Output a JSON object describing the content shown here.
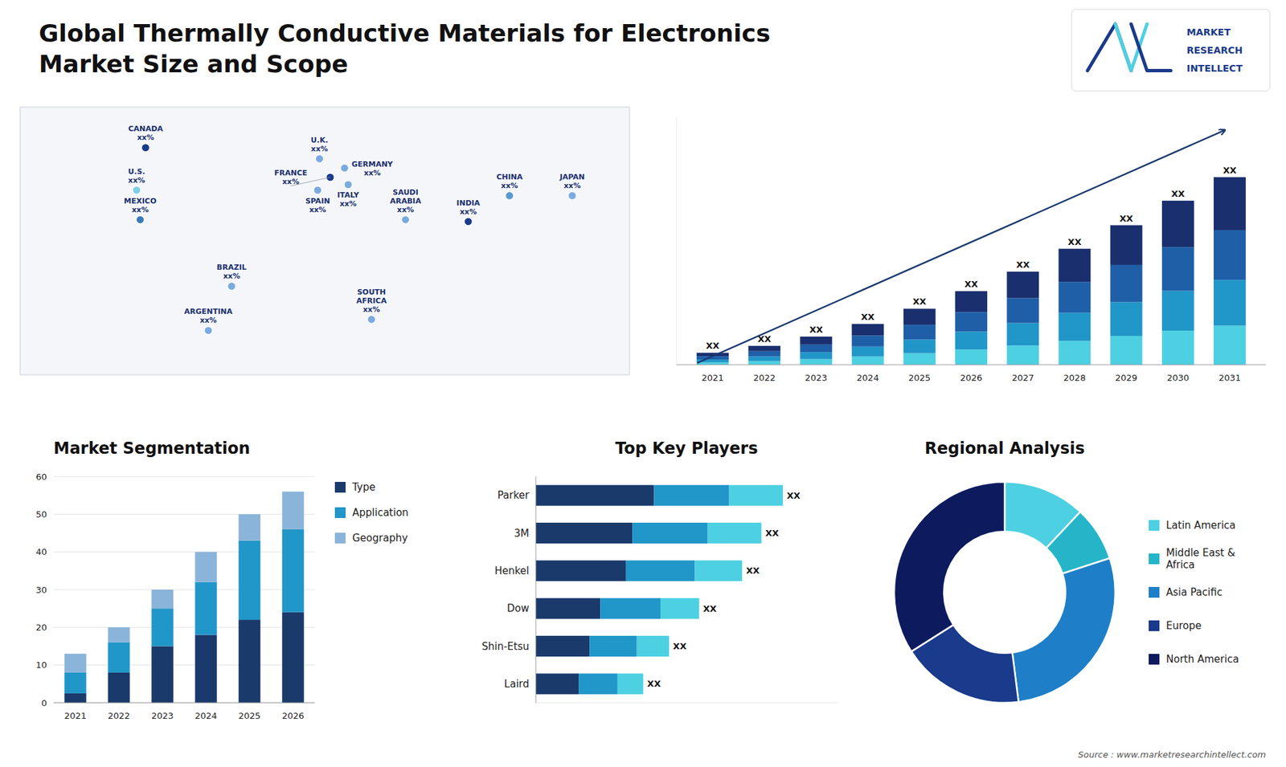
{
  "title": "Global Thermally Conductive Materials for Electronics",
  "subtitle": "Market Size and Scope",
  "annotations": [
    "Source : www.marketresearchintellect.com",
    "MARKET",
    "RESEARCH",
    "INTELLECT"
  ],
  "chart_data": [
    {
      "type": "scatter",
      "x": [
        -100,
        -105,
        -103,
        -52,
        -65,
        -3,
        3,
        -4,
        11,
        13,
        45,
        26,
        103,
        138,
        80
      ],
      "values": [
        63,
        40,
        24,
        -12,
        -36,
        57,
        47,
        40,
        52,
        43,
        24,
        -30,
        37,
        37,
        23
      ],
      "annotations": [
        "CANADA\nxx%",
        "U.S.\nxx%",
        "MEXICO\nxx%",
        "BRAZIL\nxx%",
        "ARGENTINA\nxx%",
        "U.K.\nxx%",
        "FRANCE\nxx%",
        "SPAIN\nxx%",
        "GERMANY\nxx%",
        "ITALY\nxx%",
        "SAUDI\nARABIA\nxx%",
        "SOUTH\nAFRICA\nxx%",
        "CHINA\nxx%",
        "JAPAN\nxx%",
        "INDIA\nxx%"
      ],
      "colors": [
        "#1a3a8b",
        "#7ecee8",
        "#3a7ab5",
        "#7aabe0",
        "#7aabe0",
        "#7aabe0",
        "#1a3a8b",
        "#7aabe0",
        "#7aabe0",
        "#7aabe0",
        "#7aabe0",
        "#7aabe0",
        "#5a9ad0",
        "#7aabe0",
        "#1a3a8b"
      ],
      "xlim": [
        -170,
        170
      ],
      "ylim": [
        -60,
        85
      ],
      "tick_labels": false,
      "grid": false
    },
    {
      "type": "bar",
      "stacked": true,
      "categories": [
        "2021",
        "2022",
        "2023",
        "2024",
        "2025",
        "2026",
        "2027",
        "2028",
        "2029",
        "2030",
        "2031"
      ],
      "series": [
        {
          "color": "#4dd0e1",
          "values": [
            0.7,
            1.1,
            1.7,
            2.5,
            3.5,
            4.6,
            5.8,
            7.2,
            8.7,
            10.3,
            11.8
          ]
        },
        {
          "color": "#2196c8",
          "values": [
            0.9,
            1.4,
            2.1,
            3.0,
            4.1,
            5.4,
            6.8,
            8.5,
            10.2,
            12.0,
            13.8
          ]
        },
        {
          "color": "#1e5fa8",
          "values": [
            1.0,
            1.6,
            2.3,
            3.3,
            4.5,
            5.9,
            7.5,
            9.3,
            11.2,
            13.2,
            15.0
          ]
        },
        {
          "color": "#1a2f6e",
          "values": [
            1.0,
            1.6,
            2.4,
            3.5,
            4.8,
            6.3,
            8.0,
            10.0,
            12.0,
            14.0,
            16.0
          ]
        }
      ],
      "annotations": [
        "XX",
        "XX",
        "XX",
        "XX",
        "XX",
        "XX",
        "XX",
        "XX",
        "XX",
        "XX",
        "XX"
      ],
      "ylim": [
        0,
        74.712
      ],
      "tick_labels": "x",
      "grid": false
    },
    {
      "type": "bar",
      "stacked": true,
      "title": "Market Segmentation",
      "categories": [
        "2021",
        "2022",
        "2023",
        "2024",
        "2025",
        "2026"
      ],
      "series": [
        {
          "name": "Type",
          "color": "#1a3a6b",
          "values": [
            2.5,
            8.0,
            15.0,
            18.0,
            22.0,
            24.0
          ]
        },
        {
          "name": "Application",
          "color": "#2196c8",
          "values": [
            5.5,
            8.0,
            10.0,
            14.0,
            21.0,
            22.0
          ]
        },
        {
          "name": "Geography",
          "color": "#8ab4d9",
          "values": [
            5.0,
            4.0,
            5.0,
            8.0,
            7.0,
            10.0
          ]
        }
      ],
      "ylim": [
        0,
        60
      ],
      "yticks": [
        0,
        10,
        20,
        30,
        40,
        50,
        60
      ],
      "grid": true,
      "legend": "right"
    },
    {
      "type": "bar",
      "orientation": "horizontal",
      "stacked": true,
      "title": "Top Key Players",
      "categories": [
        "Parker",
        "3M",
        "Henkel",
        "Dow",
        "Shin-Etsu",
        "Laird"
      ],
      "series": [
        {
          "color": "#1a3a6b",
          "values": [
            5.5,
            4.5,
            4.2,
            3.0,
            2.5,
            2.0
          ]
        },
        {
          "color": "#2196c8",
          "values": [
            3.5,
            3.5,
            3.2,
            2.8,
            2.2,
            1.8
          ]
        },
        {
          "color": "#4dd0e1",
          "values": [
            2.5,
            2.5,
            2.2,
            1.8,
            1.5,
            1.2
          ]
        }
      ],
      "annotations": [
        "XX",
        "XX",
        "XX",
        "XX",
        "XX",
        "XX"
      ],
      "xlim": [
        0,
        14.03
      ],
      "tick_labels": "y",
      "grid": false
    },
    {
      "type": "donut",
      "title": "Regional Analysis",
      "categories": [
        "Latin America",
        "Middle East &\nAfrica",
        "Asia Pacific",
        "Europe",
        "North America"
      ],
      "values": [
        12,
        8,
        28,
        18,
        34
      ],
      "colors": [
        "#4dd0e1",
        "#26b5c8",
        "#1e7fc8",
        "#1a3a8b",
        "#0d1b5e"
      ],
      "legend": "right"
    }
  ]
}
